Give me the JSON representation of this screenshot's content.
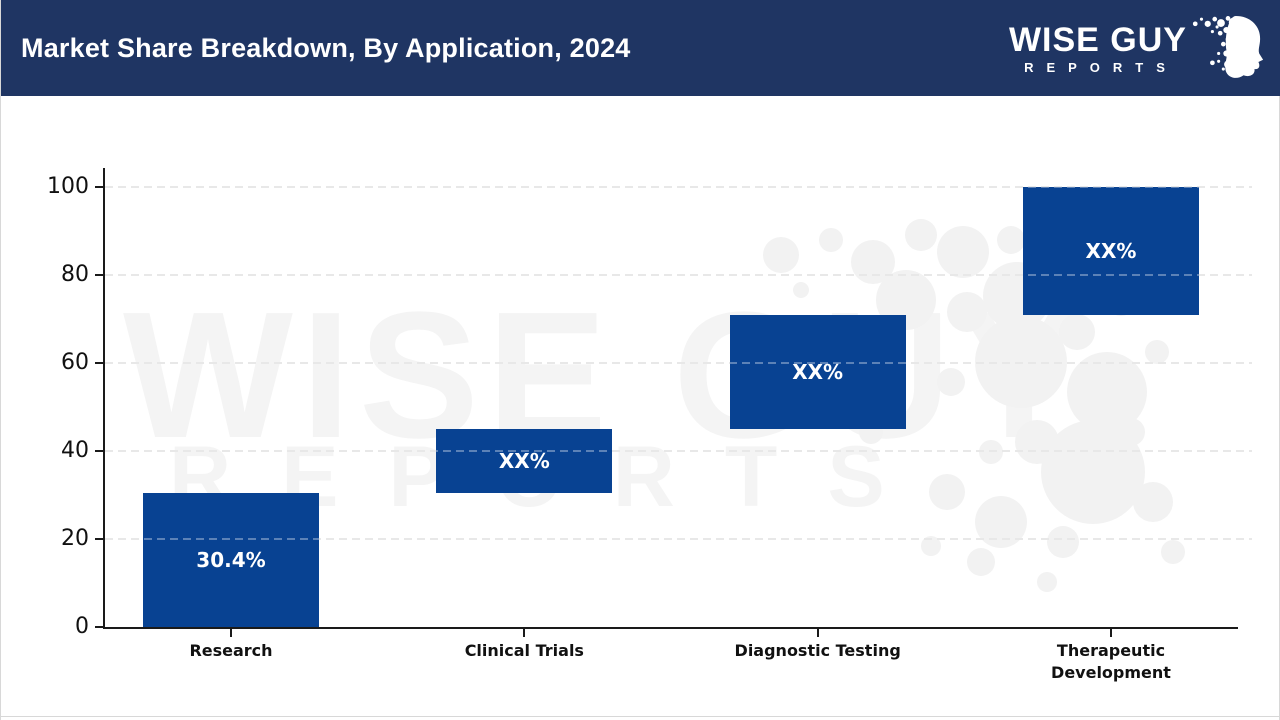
{
  "header": {
    "title": "Market Share Breakdown, By Application, 2024",
    "logo": {
      "name": "WISE GUY",
      "sub": "REPORTS"
    }
  },
  "watermark": {
    "line1": "WISE GUY",
    "line2": "REPORTS"
  },
  "chart_data": {
    "type": "bar",
    "variant": "waterfall",
    "title": "Market Share Breakdown, By Application, 2024",
    "categories": [
      "Research",
      "Clinical Trials",
      "Diagnostic Testing",
      "Therapeutic Development"
    ],
    "segments": [
      {
        "category": "Research",
        "start": 0,
        "end": 30.4,
        "label": "30.4%"
      },
      {
        "category": "Clinical Trials",
        "start": 30.4,
        "end": 45,
        "label": "XX%"
      },
      {
        "category": "Diagnostic Testing",
        "start": 45,
        "end": 71,
        "label": "XX%"
      },
      {
        "category": "Therapeutic Development",
        "start": 71,
        "end": 100,
        "label": "XX%"
      }
    ],
    "y_ticks": [
      0,
      20,
      40,
      60,
      80,
      100
    ],
    "ylim": [
      0,
      105
    ],
    "xlabel": "",
    "ylabel": "",
    "grid": "horizontal-dashed",
    "legend": "none",
    "colors": {
      "header_bg": "#1f3563",
      "bar": "#084292",
      "bar_label": "#ffffff",
      "grid": "#dcdcdc",
      "axis": "#1a1a1a",
      "tick_label": "#111111",
      "watermark": "#f4f4f4"
    }
  }
}
